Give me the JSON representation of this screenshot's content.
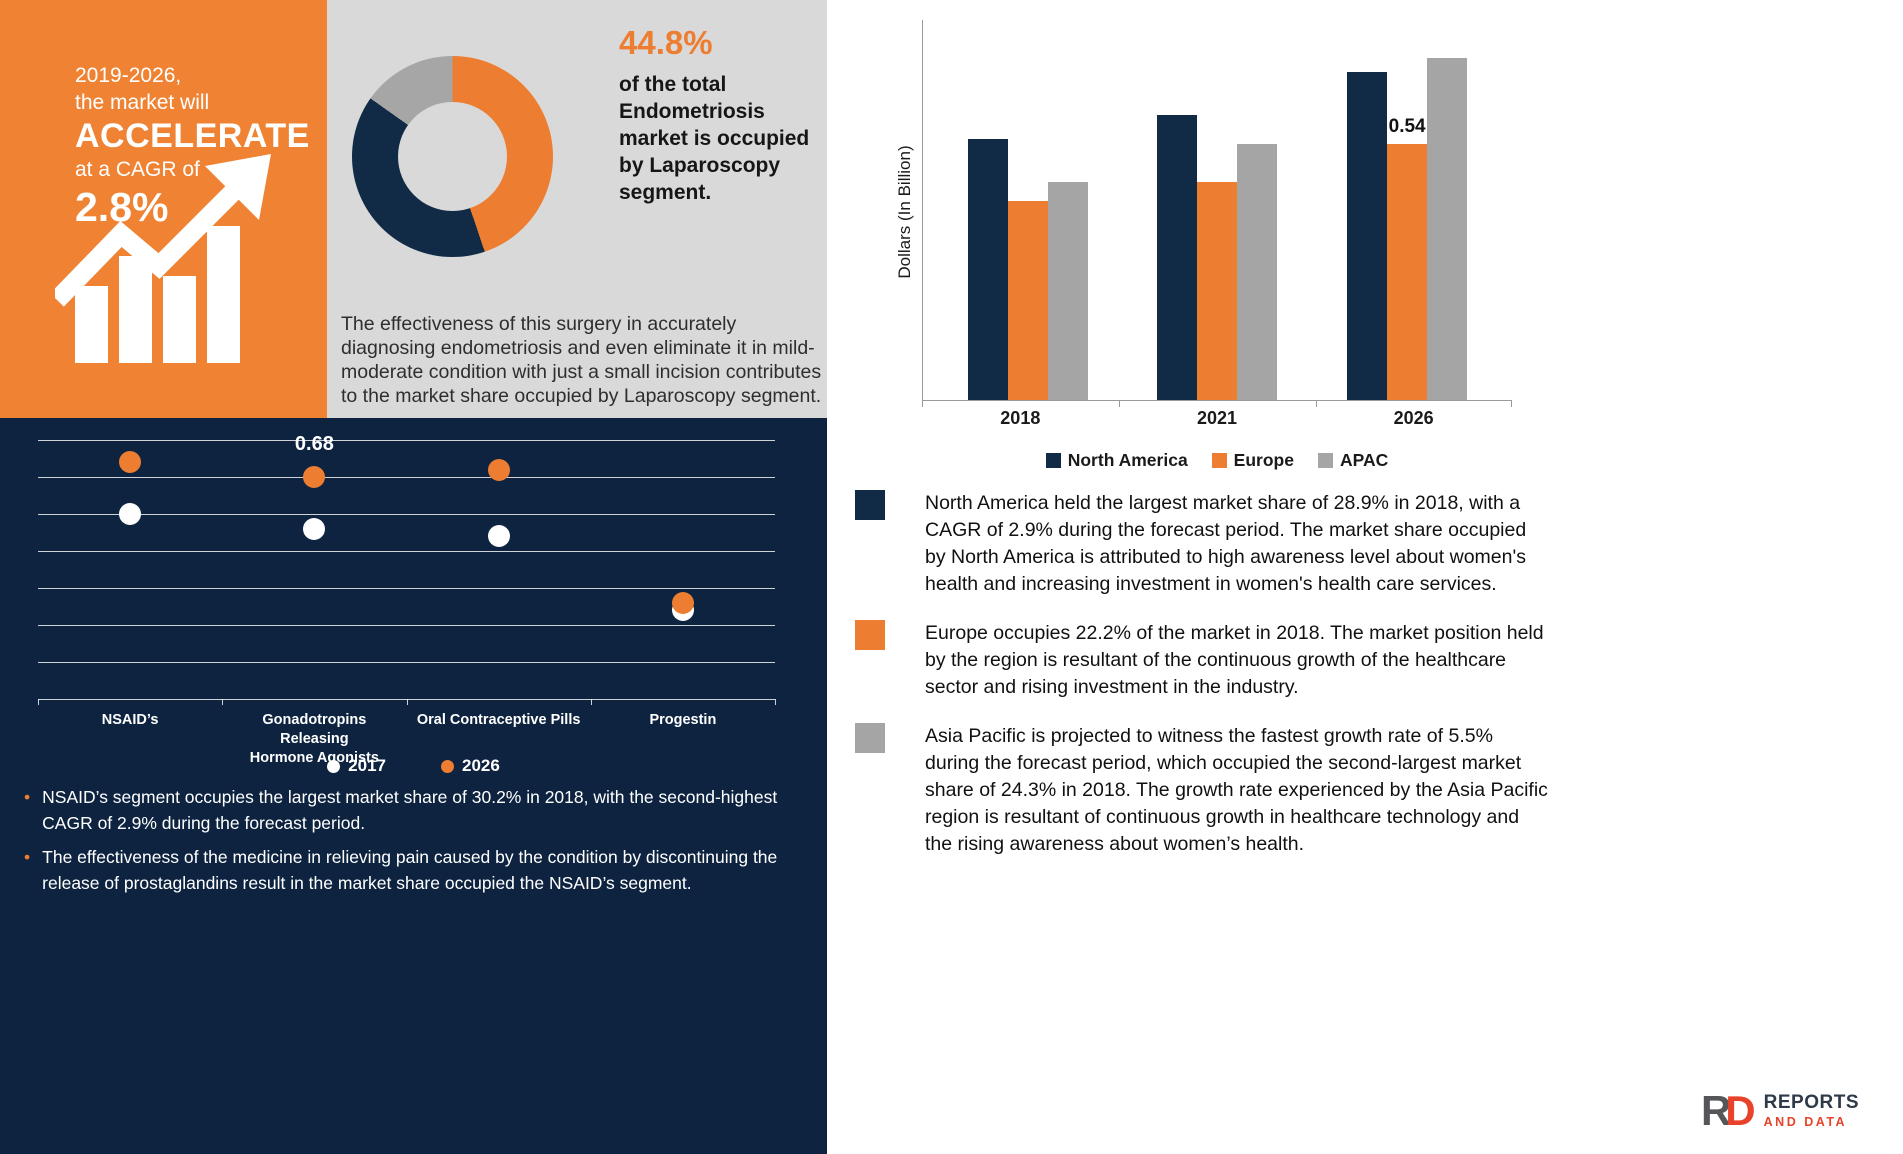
{
  "cagr_panel": {
    "intro_line1": "2019-2026,",
    "intro_line2": "the market will",
    "headline": "ACCELERATE",
    "sub_line": "at a CAGR of",
    "cagr_value": "2.8%"
  },
  "laparoscopy_panel": {
    "stat_value": "44.8%",
    "stat_caption": "of the total Endometriosis market is occupied by Laparoscopy segment.",
    "body_text": "The effectiveness of this surgery in accurately diagnosing endometriosis and even eliminate it in mild-moderate condition with just a small incision contributes to the market share occupied by Laparoscopy segment."
  },
  "treatment_panel": {
    "bullets": [
      "NSAID’s segment occupies the largest market share of 30.2% in 2018, with the second-highest CAGR of 2.9% during the forecast period.",
      "The effectiveness of the medicine in relieving pain caused by the condition by discontinuing the release of prostaglandins result in the market share occupied the NSAID’s segment."
    ]
  },
  "regional_panel": {
    "bullets": [
      {
        "color": "#112A46",
        "text": "North America held the largest market share of 28.9% in 2018, with a CAGR of 2.9% during the forecast period. The market share occupied by North America is attributed to high awareness level about women's health and increasing investment in women's health care services."
      },
      {
        "color": "#ED7D31",
        "text": "Europe occupies 22.2% of the market in 2018. The market position held by the region is resultant of the continuous growth of the healthcare sector and rising investment in the industry."
      },
      {
        "color": "#A5A5A5",
        "text": "Asia Pacific is projected to witness the fastest growth rate of 5.5% during the forecast period, which occupied the second-largest market share of 24.3% in 2018. The growth rate experienced by the Asia Pacific region is resultant of continuous growth in healthcare technology and the rising awareness about women’s health."
      }
    ]
  },
  "logo": {
    "monogram_r": "R",
    "monogram_d": "D",
    "line1": "REPORTS",
    "line2": "AND DATA"
  },
  "chart_data": [
    {
      "id": "laparoscopy-donut",
      "type": "pie",
      "donut": true,
      "segments": [
        {
          "label": "Laparoscopy",
          "value": 44.8,
          "color": "#ED7D31"
        },
        {
          "label": "",
          "value": 40.0,
          "color": "#112A46"
        },
        {
          "label": "",
          "value": 15.2,
          "color": "#A6A6A6"
        }
      ],
      "title": "44.8% of the total Endometriosis market is occupied by Laparoscopy segment."
    },
    {
      "id": "treatment-dot-plot",
      "type": "scatter",
      "categories": [
        "NSAID’s",
        "Gonadotropins Releasing\nHormone Agonists",
        "Oral Contraceptive Pills",
        "Progestin"
      ],
      "series": [
        {
          "name": "2017",
          "color": "#FFFFFF",
          "values": [
            0.63,
            0.61,
            0.6,
            0.5
          ]
        },
        {
          "name": "2026",
          "color": "#ED7D31",
          "values": [
            0.7,
            0.68,
            0.69,
            0.51
          ]
        }
      ],
      "ylim": [
        0.38,
        0.73
      ],
      "gridlines": 8,
      "grid": true,
      "legend_position": "bottom",
      "data_label": {
        "series": "2026",
        "category_index": 1,
        "text": "0.68"
      }
    },
    {
      "id": "regional-bar-chart",
      "type": "bar",
      "categories": [
        "2018",
        "2021",
        "2026"
      ],
      "series": [
        {
          "name": "North America",
          "color": "#112A46",
          "values": [
            0.55,
            0.6,
            0.69
          ]
        },
        {
          "name": "Europe",
          "color": "#ED7D31",
          "values": [
            0.42,
            0.46,
            0.54
          ]
        },
        {
          "name": "APAC",
          "color": "#A5A5A5",
          "values": [
            0.46,
            0.54,
            0.72
          ]
        }
      ],
      "ylabel": "Dollars (In Billion)",
      "ylim": [
        0,
        0.8
      ],
      "grid": false,
      "legend_position": "bottom",
      "data_label": {
        "series": "Europe",
        "category_index": 2,
        "text": "0.54"
      }
    }
  ]
}
